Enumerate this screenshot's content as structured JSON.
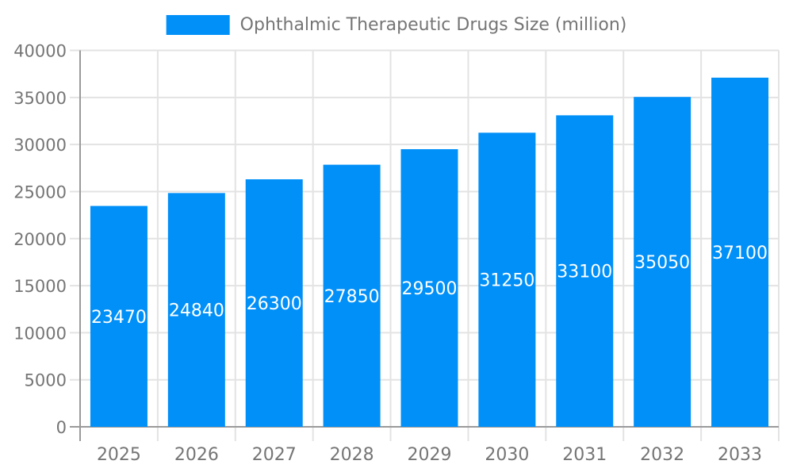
{
  "chart_data": {
    "type": "bar",
    "title": "Ophthalmic Therapeutic Drugs Size (million)",
    "legend": [
      {
        "label": "Ophthalmic Therapeutic Drugs Size (million)",
        "color": "#0190f8"
      }
    ],
    "legend_position": "top-center",
    "categories": [
      "2025",
      "2026",
      "2027",
      "2028",
      "2029",
      "2030",
      "2031",
      "2032",
      "2033"
    ],
    "series": [
      {
        "name": "Ophthalmic Therapeutic Drugs Size (million)",
        "values": [
          23470,
          24840,
          26300,
          27850,
          29500,
          31250,
          33100,
          35050,
          37100
        ]
      }
    ],
    "xlabel": "",
    "ylabel": "",
    "ylim": [
      0,
      40000
    ],
    "ytick_step": 5000,
    "ytick_labels": [
      "0",
      "5000",
      "10000",
      "15000",
      "20000",
      "25000",
      "30000",
      "35000",
      "40000"
    ],
    "grid": true,
    "bar_labels_inside": true,
    "colors": {
      "bar": "#0190f8",
      "bar_label": "#ffffff",
      "grid": "#e3e3e3",
      "axis": "#9a9a9a",
      "text": "#757575"
    }
  }
}
